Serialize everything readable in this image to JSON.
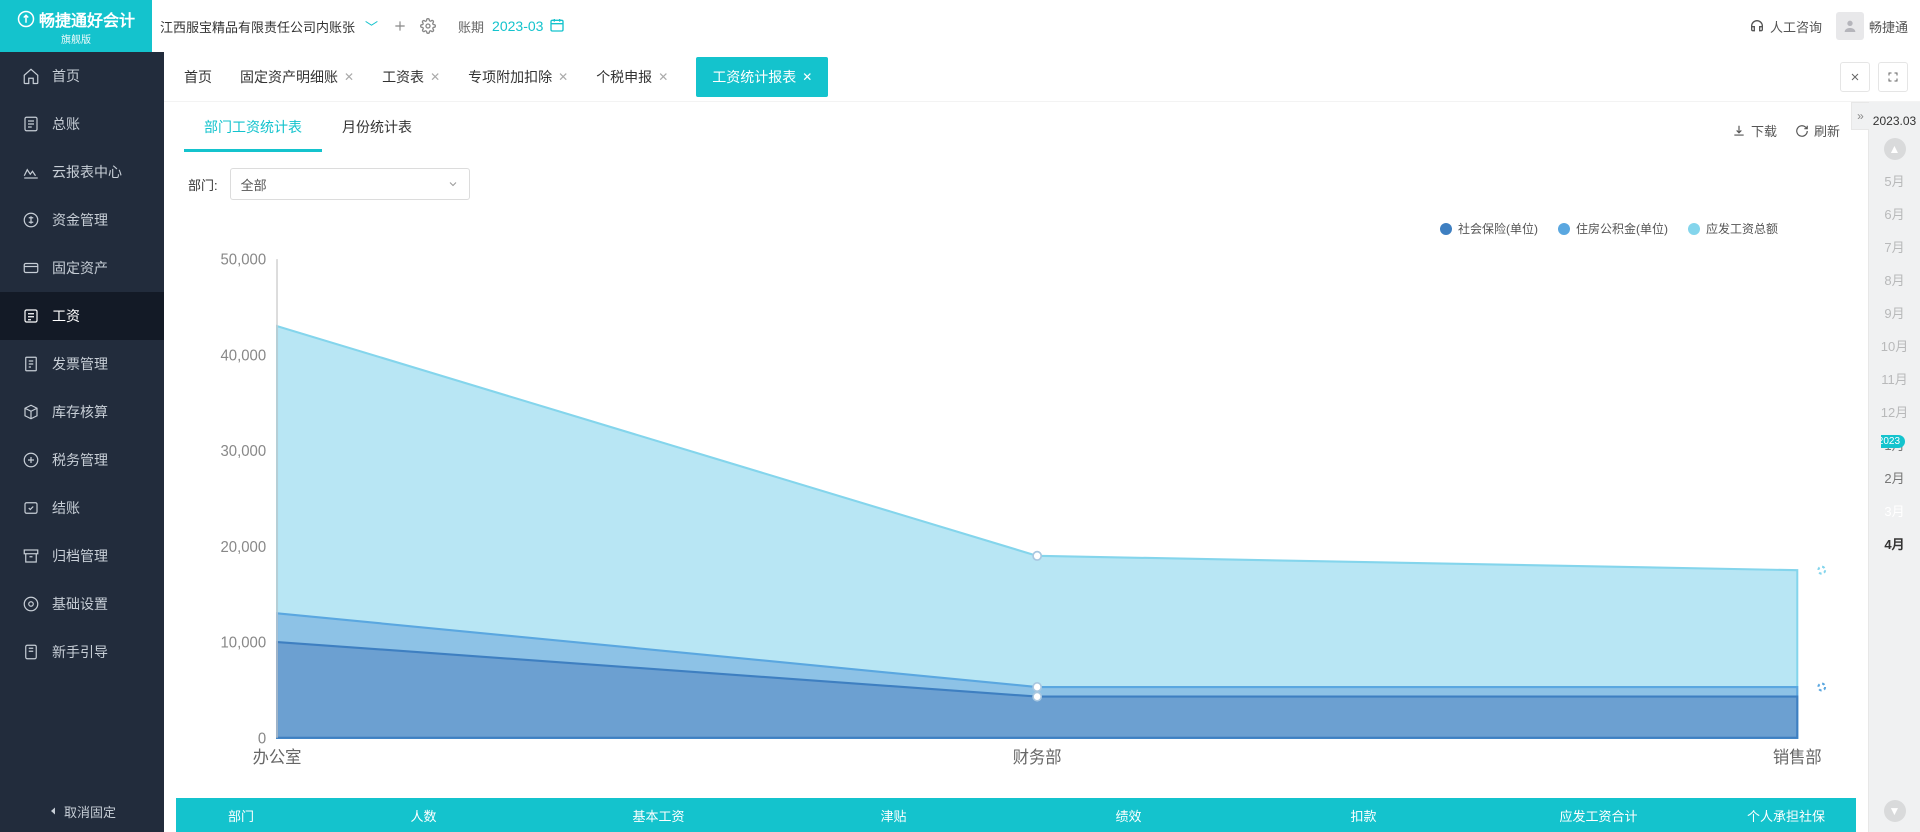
{
  "brand": {
    "name": "畅捷通好会计",
    "edition": "旗舰版"
  },
  "company": "江西服宝精品有限责任公司内账张",
  "period": {
    "label": "账期",
    "value": "2023-03"
  },
  "topbar": {
    "consult": "人工咨询",
    "user": "畅捷通"
  },
  "sidebar": {
    "items": [
      {
        "icon": "home",
        "label": "首页"
      },
      {
        "icon": "ledger",
        "label": "总账"
      },
      {
        "icon": "cloud",
        "label": "云报表中心"
      },
      {
        "icon": "fund",
        "label": "资金管理"
      },
      {
        "icon": "asset",
        "label": "固定资产"
      },
      {
        "icon": "salary",
        "label": "工资"
      },
      {
        "icon": "invoice",
        "label": "发票管理"
      },
      {
        "icon": "stock",
        "label": "库存核算"
      },
      {
        "icon": "tax",
        "label": "税务管理"
      },
      {
        "icon": "close",
        "label": "结账"
      },
      {
        "icon": "archive",
        "label": "归档管理"
      },
      {
        "icon": "setting",
        "label": "基础设置"
      },
      {
        "icon": "guide",
        "label": "新手引导"
      }
    ],
    "active_index": 5,
    "footer": "取消固定"
  },
  "tabs": {
    "items": [
      {
        "label": "首页",
        "closable": false
      },
      {
        "label": "固定资产明细账",
        "closable": true
      },
      {
        "label": "工资表",
        "closable": true
      },
      {
        "label": "专项附加扣除",
        "closable": true
      },
      {
        "label": "个税申报",
        "closable": true
      },
      {
        "label": "工资统计报表",
        "closable": true
      }
    ],
    "active_index": 5
  },
  "subtabs": {
    "items": [
      "部门工资统计表",
      "月份统计表"
    ],
    "active_index": 0,
    "download": "下载",
    "refresh": "刷新"
  },
  "filter": {
    "label": "部门:",
    "value": "全部"
  },
  "chart": {
    "type": "area",
    "legend": [
      {
        "label": "社会保险(单位)",
        "color": "#3e7fc1"
      },
      {
        "label": "住房公积金(单位)",
        "color": "#5aa7e0"
      },
      {
        "label": "应发工资总额",
        "color": "#84d5ec"
      }
    ],
    "categories": [
      "办公室",
      "财务部",
      "销售部"
    ],
    "series": {
      "social": [
        10000,
        4300,
        4300
      ],
      "fund": [
        13000,
        5300,
        5300
      ],
      "salary": [
        43000,
        19000,
        17500
      ]
    },
    "ylim": [
      0,
      50000
    ],
    "ytick_step": 10000,
    "yticks": [
      "0",
      "10,000",
      "20,000",
      "30,000",
      "40,000",
      "50,000"
    ],
    "colors": {
      "social_fill": "#6294c9",
      "social_stroke": "#3e7fc1",
      "fund_fill": "#7fb6e2",
      "fund_stroke": "#5aa7e0",
      "salary_fill": "#a0def0",
      "salary_stroke": "#84d5ec",
      "grid": "#eeeeee",
      "axis": "#cccccc"
    },
    "font": {
      "tick_size": 11
    }
  },
  "table": {
    "columns": [
      "部门",
      "人数",
      "基本工资",
      "津贴",
      "绩效",
      "扣款",
      "应发工资合计",
      "个人承担社保"
    ]
  },
  "month_strip": {
    "year_top": "2023.03",
    "year_badge": "2023",
    "months": [
      {
        "label": "5月",
        "state": "future"
      },
      {
        "label": "6月",
        "state": "future"
      },
      {
        "label": "7月",
        "state": "future"
      },
      {
        "label": "8月",
        "state": "future"
      },
      {
        "label": "9月",
        "state": "future"
      },
      {
        "label": "10月",
        "state": "future"
      },
      {
        "label": "11月",
        "state": "future"
      },
      {
        "label": "12月",
        "state": "future"
      },
      {
        "label": "1月",
        "state": "normal",
        "badge": true
      },
      {
        "label": "2月",
        "state": "normal"
      },
      {
        "label": "3月",
        "state": "current"
      },
      {
        "label": "4月",
        "state": "bold"
      }
    ]
  }
}
